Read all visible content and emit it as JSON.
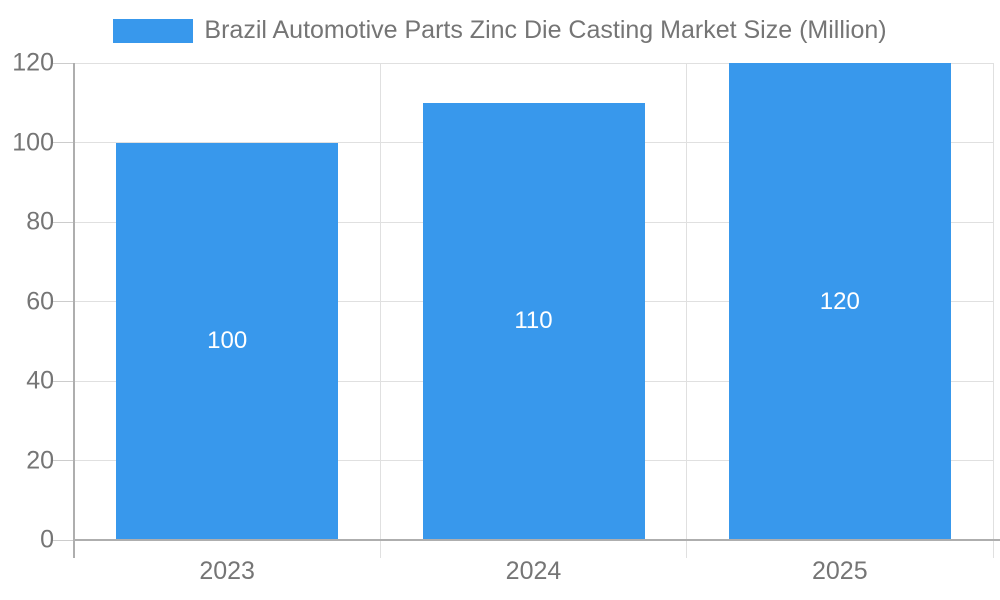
{
  "legend": {
    "label": "Brazil Automotive Parts Zinc Die Casting Market Size (Million)"
  },
  "chart_data": {
    "type": "bar",
    "title": "Brazil Automotive Parts Zinc Die Casting Market Size (Million)",
    "categories": [
      "2023",
      "2024",
      "2025"
    ],
    "series": [
      {
        "name": "Brazil Automotive Parts Zinc Die Casting Market Size (Million)",
        "values": [
          100,
          110,
          120
        ]
      }
    ],
    "values": [
      100,
      110,
      120
    ],
    "data_labels": [
      "100",
      "110",
      "120"
    ],
    "xlabel": "",
    "ylabel": "",
    "ylim": [
      0,
      120
    ],
    "yticks": [
      0,
      20,
      40,
      60,
      80,
      100,
      120
    ],
    "grid": true,
    "legend_position": "top-center",
    "colors": {
      "bar": "#3898ec",
      "axis_text": "#757575",
      "gridline": "#e0e0e0",
      "tick": "#cccccc",
      "axis_line": "#aeaeae",
      "data_label": "#ffffff",
      "background": "#ffffff"
    }
  }
}
